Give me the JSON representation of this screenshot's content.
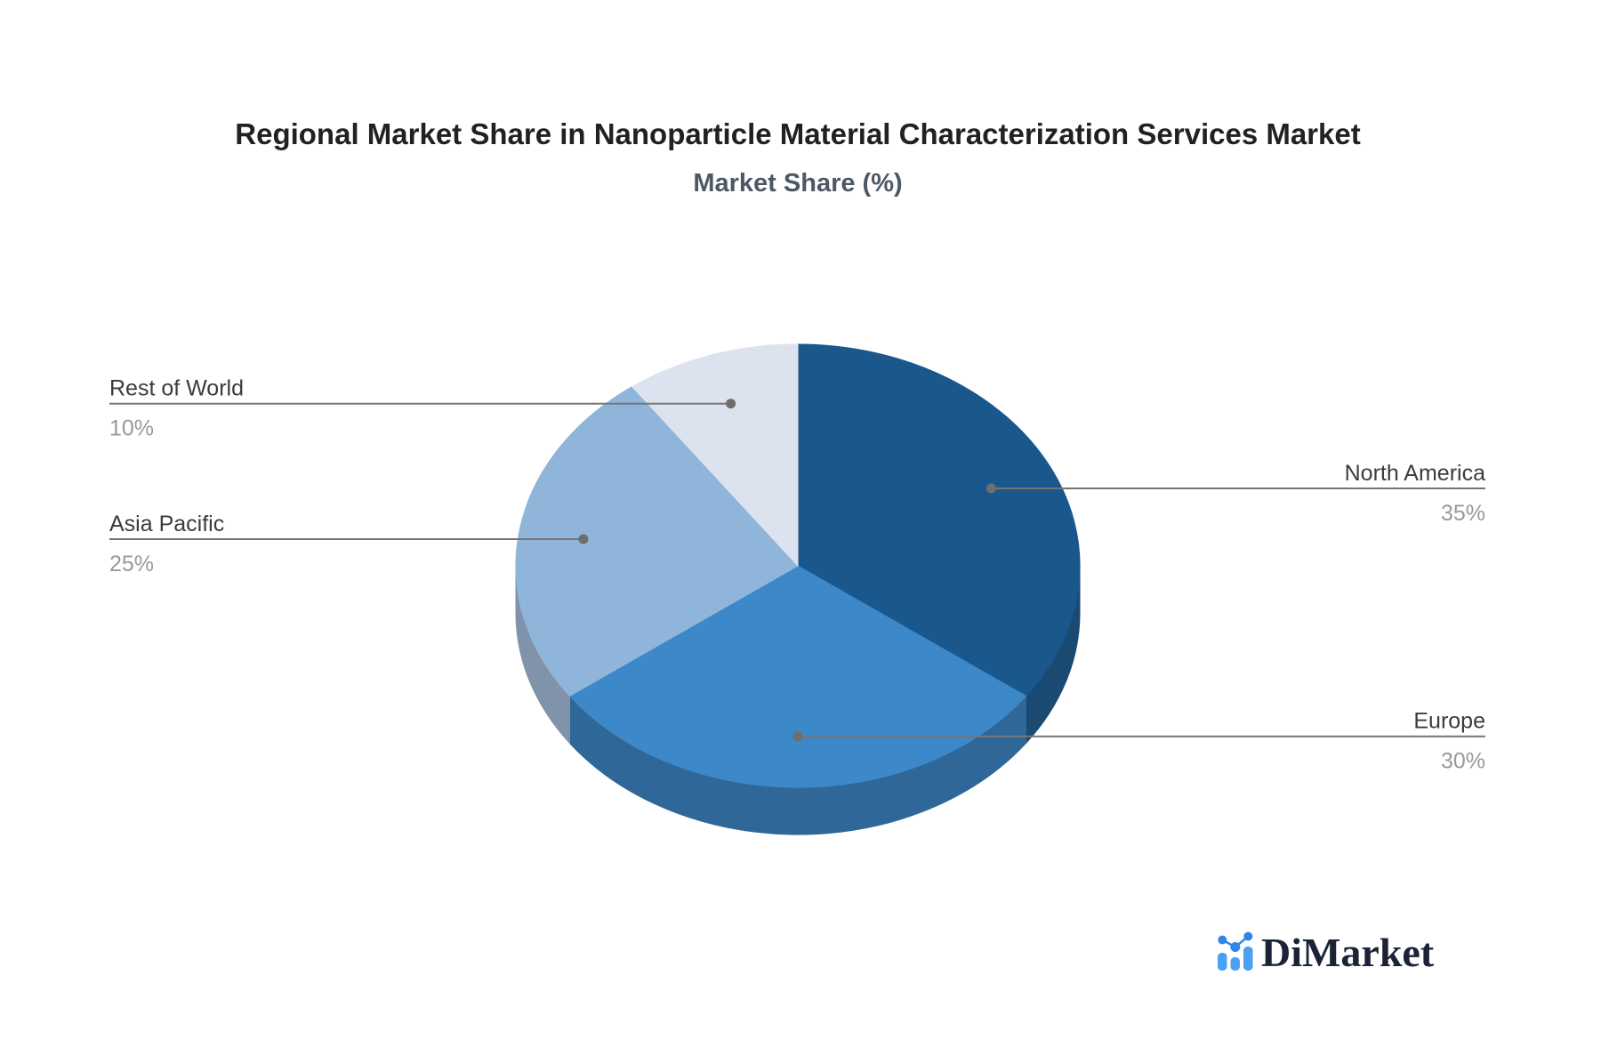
{
  "page": {
    "background": "#ffffff"
  },
  "chart_data": {
    "type": "pie",
    "style": "3d-pie",
    "title": "Regional Market Share in Nanoparticle Material Characterization Services Market",
    "subtitle": "Market Share (%)",
    "unit": "%",
    "direction": "clockwise",
    "start_angle": "12-o-clock",
    "legend_position": "none",
    "categories": [
      "North America",
      "Europe",
      "Asia Pacific",
      "Rest of World"
    ],
    "values": [
      35,
      30,
      25,
      10
    ],
    "slices": [
      {
        "name": "North America",
        "value": 35,
        "pct_label": "35%",
        "color": "#1a578c",
        "side_color": "#1a4a72",
        "label_side": "right"
      },
      {
        "name": "Europe",
        "value": 30,
        "pct_label": "30%",
        "color": "#3c88c9",
        "side_color": "#2f6898",
        "label_side": "right"
      },
      {
        "name": "Asia Pacific",
        "value": 25,
        "pct_label": "25%",
        "color": "#90b5da",
        "side_color": "#8093aa",
        "label_side": "left"
      },
      {
        "name": "Rest of World",
        "value": 10,
        "pct_label": "10%",
        "color": "#dde3ee",
        "side_color": "#c6cdd8",
        "label_side": "left"
      }
    ],
    "label_style": {
      "name_color": "#3c3c3c",
      "value_color": "#999999",
      "line_color": "#757575",
      "dot_color": "#6e6e6e"
    }
  },
  "branding": {
    "logo_text": "DiMarket",
    "logo_color": "#1b2336",
    "icon_bar_color": "#4ba0f4",
    "icon_dot_color": "#2e86e8"
  }
}
